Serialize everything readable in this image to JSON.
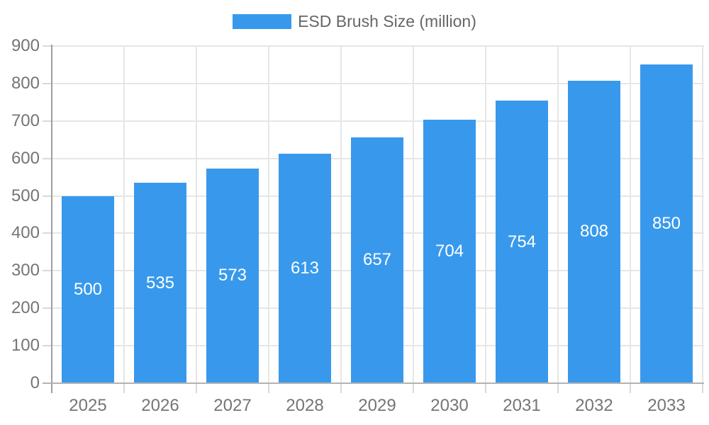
{
  "chart_data": {
    "type": "bar",
    "title": "ESD Brush Size (million)",
    "legend_position": "top",
    "categories": [
      "2025",
      "2026",
      "2027",
      "2028",
      "2029",
      "2030",
      "2031",
      "2032",
      "2033"
    ],
    "series": [
      {
        "name": "ESD Brush Size (million)",
        "values": [
          500,
          535,
          573,
          613,
          657,
          704,
          754,
          808,
          850
        ]
      }
    ],
    "bar_value_labels": [
      "500",
      "535",
      "573",
      "613",
      "657",
      "704",
      "754",
      "808",
      "850"
    ],
    "xlabel": "",
    "ylabel": "",
    "ylim": [
      0,
      900
    ],
    "y_tick_step": 100,
    "y_ticks": [
      0,
      100,
      200,
      300,
      400,
      500,
      600,
      700,
      800,
      900
    ],
    "y_tick_labels": [
      "0",
      "100",
      "200",
      "300",
      "400",
      "500",
      "600",
      "700",
      "800",
      "900"
    ],
    "grid": "on",
    "colors": {
      "bar": "#3899ec",
      "grid": "#e6e6e6",
      "tick": "#d9d9d9",
      "axis_y": "#9e9e9e",
      "axis_x": "#b3b3b3",
      "axis_text": "#757575",
      "legend_text": "#666666",
      "bar_label": "#ffffff",
      "background": "#ffffff"
    }
  }
}
